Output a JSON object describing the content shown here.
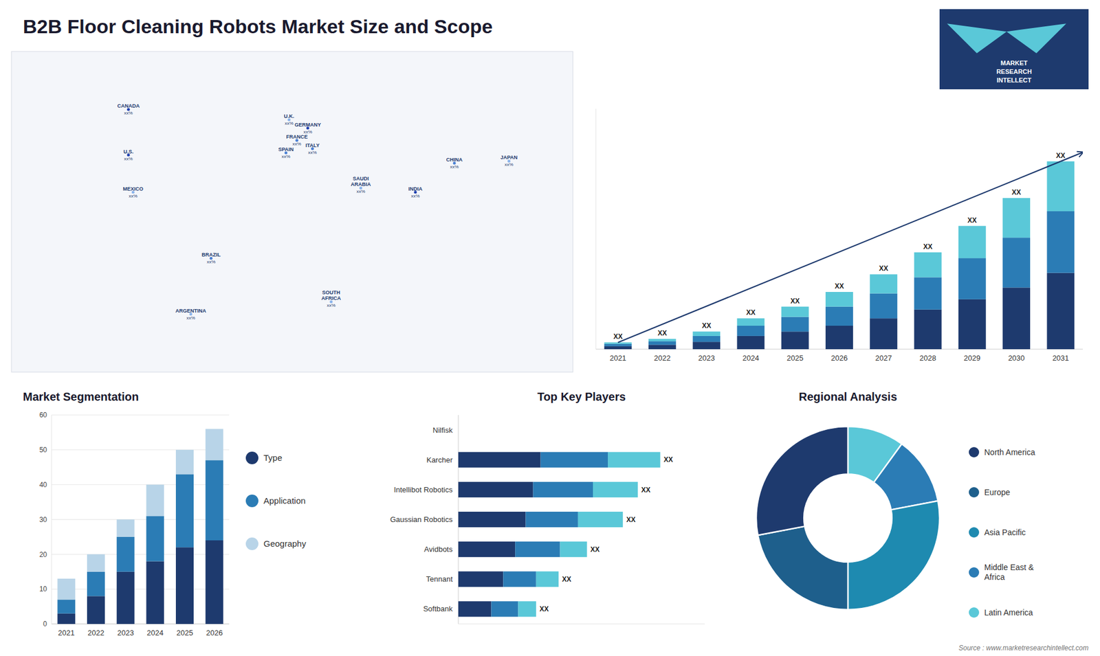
{
  "title": "B2B Floor Cleaning Robots Market Size and Scope",
  "annotations": [
    "Source : www.marketresearchintellect.com",
    "MARKET",
    "RESEARCH",
    "INTELLECT"
  ],
  "chart_data": [
    {
      "type": "map",
      "categories": [
        "CANADA",
        "U.S.",
        "MEXICO",
        "BRAZIL",
        "ARGENTINA",
        "U.K.",
        "FRANCE",
        "SPAIN",
        "GERMANY",
        "ITALY",
        "SAUDI\nARABIA",
        "SOUTH\nAFRICA",
        "CHINA",
        "INDIA",
        "JAPAN"
      ],
      "x": [
        -105,
        -105,
        -102,
        -52,
        -65,
        -2,
        3,
        -4,
        10,
        13,
        44,
        25,
        104,
        79,
        139
      ],
      "y": [
        62,
        40,
        22,
        -10,
        -37,
        57,
        47,
        41,
        53,
        43,
        24,
        -31,
        36,
        22,
        37
      ],
      "xlim": [
        -180,
        180
      ],
      "ylim": [
        -65,
        90
      ],
      "colors": [
        "#2040b0",
        "#2040b0",
        "#8ab4ec",
        "#4a80d4",
        "#8ab4ec",
        "#8ab4ec",
        "#4a80d4",
        "#4a80d4",
        "#2040b0",
        "#4a80d4",
        "#8ab4ec",
        "#8ab4ec",
        "#4a80d4",
        "#2040b0",
        "#8ab4ec"
      ],
      "annotations": [
        "xx%",
        "xx%",
        "xx%",
        "xx%",
        "xx%",
        "xx%",
        "xx%",
        "xx%",
        "xx%",
        "xx%",
        "xx%",
        "xx%",
        "xx%",
        "xx%",
        "xx%"
      ]
    },
    {
      "type": "bar",
      "stacked": true,
      "categories": [
        "2021",
        "2022",
        "2023",
        "2024",
        "2025",
        "2026",
        "2027",
        "2028",
        "2029",
        "2030",
        "2031"
      ],
      "series": [
        {
          "color": "#1e3a6e",
          "values": [
            1.0,
            1.5,
            2.5,
            4.5,
            6.0,
            8.0,
            10.5,
            13.5,
            17.0,
            21.0,
            26.0
          ]
        },
        {
          "color": "#2b7cb5",
          "values": [
            0.8,
            1.2,
            2.0,
            3.5,
            5.0,
            6.5,
            8.5,
            11.0,
            14.0,
            17.0,
            21.0
          ]
        },
        {
          "color": "#5ac8d8",
          "values": [
            0.5,
            0.8,
            1.5,
            2.5,
            3.5,
            5.0,
            6.5,
            8.5,
            11.0,
            13.5,
            17.0
          ]
        }
      ],
      "ylim": [
        0,
        81.92
      ],
      "tick_labels": "x",
      "annotations": [
        "XX",
        "XX",
        "XX",
        "XX",
        "XX",
        "XX",
        "XX",
        "XX",
        "XX",
        "XX",
        "XX"
      ],
      "trend_line": {
        "categories": [
          "2021",
          "2031"
        ],
        "values": [
          2.3,
          64.0
        ],
        "color": "#1e3a6e"
      }
    },
    {
      "type": "bar",
      "stacked": true,
      "title": "Market Segmentation",
      "categories": [
        "2021",
        "2022",
        "2023",
        "2024",
        "2025",
        "2026"
      ],
      "series": [
        {
          "name": "Type",
          "color": "#1e3a6e",
          "values": [
            3,
            8,
            15,
            18,
            22,
            24
          ]
        },
        {
          "name": "Application",
          "color": "#2b7cb5",
          "values": [
            4,
            7,
            10,
            13,
            21,
            23
          ]
        },
        {
          "name": "Geography",
          "color": "#b8d4e8",
          "values": [
            6,
            5,
            5,
            9,
            7,
            9
          ]
        }
      ],
      "ylim": [
        0,
        60
      ],
      "yticks": [
        0,
        10,
        20,
        30,
        40,
        50,
        60
      ],
      "grid": true,
      "legend": "right"
    },
    {
      "type": "bar",
      "stacked": true,
      "orientation": "horizontal",
      "title": "Top Key Players",
      "categories": [
        "Nilfisk",
        "Karcher",
        "Intellibot Robotics",
        "Gaussian Robotics",
        "Avidbots",
        "Tennant",
        "Softbank"
      ],
      "series": [
        {
          "color": "#1e3a6e",
          "values": [
            0.0,
            5.5,
            5.0,
            4.5,
            3.8,
            3.0,
            2.2
          ]
        },
        {
          "color": "#2b7cb5",
          "values": [
            0.0,
            4.5,
            4.0,
            3.5,
            3.0,
            2.2,
            1.8
          ]
        },
        {
          "color": "#5ac8d8",
          "values": [
            0.0,
            3.5,
            3.0,
            3.0,
            1.8,
            1.5,
            1.2
          ]
        }
      ],
      "xlim": [
        0,
        16.47
      ],
      "tick_labels": "y",
      "annotations": [
        null,
        "XX",
        "XX",
        "XX",
        "XX",
        "XX",
        "XX"
      ]
    },
    {
      "type": "donut",
      "title": "Regional Analysis",
      "categories": [
        "Latin America",
        "Middle East &\nAfrica",
        "Asia Pacific",
        "Europe",
        "North America"
      ],
      "values": [
        10,
        12,
        28,
        22,
        28
      ],
      "colors": [
        "#5ac8d8",
        "#2b7cb5",
        "#1e8ab0",
        "#1e5f8c",
        "#1e3a6e"
      ],
      "legend": "right"
    }
  ]
}
